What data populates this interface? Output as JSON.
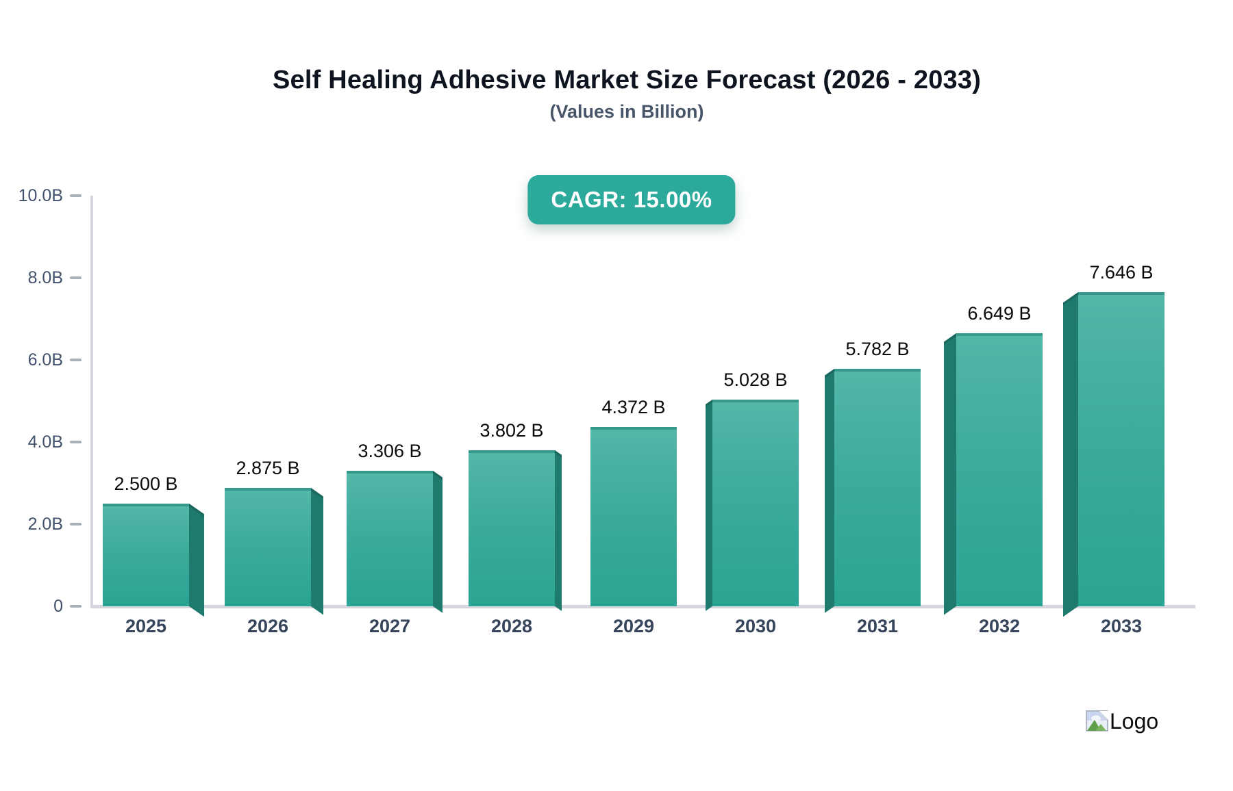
{
  "title": "Self Healing Adhesive Market Size Forecast (2026 - 2033)",
  "subtitle": "(Values in Billion)",
  "badge": {
    "text": "CAGR: 15.00%",
    "bg_color": "#2ba99b"
  },
  "logo": {
    "alt_text": "Logo"
  },
  "colors": {
    "bar_face_top": "#53b6a9",
    "bar_face_bottom": "#2aa493",
    "bar_side": "#1f7a6e",
    "axis_line": "#d3d7dd",
    "tick_dash": "#aab1b9",
    "y_label": "#42526b",
    "x_label": "#36455b",
    "value_label": "#0a0a0a",
    "badge_bg": "#2ba99b",
    "title_color": "#0d1420",
    "subtitle_color": "#475569"
  },
  "chart_data": {
    "type": "bar",
    "title": "Self Healing Adhesive Market Size Forecast (2026 - 2033)",
    "subtitle": "(Values in Billion)",
    "cagr": "15.00%",
    "unit": "Billion",
    "categories": [
      "2025",
      "2026",
      "2027",
      "2028",
      "2029",
      "2030",
      "2031",
      "2032",
      "2033"
    ],
    "values": [
      2.5,
      2.875,
      3.306,
      3.802,
      4.372,
      5.028,
      5.782,
      6.649,
      7.646
    ],
    "bar_labels": [
      "2.500 B",
      "2.875 B",
      "3.306 B",
      "3.802 B",
      "4.372 B",
      "5.028 B",
      "5.782 B",
      "6.649 B",
      "7.646 B"
    ],
    "ylim": [
      0,
      10
    ],
    "yticks": [
      {
        "value": 10,
        "label": "10.0B"
      },
      {
        "value": 8,
        "label": "8.0B"
      },
      {
        "value": 6,
        "label": "6.0B"
      },
      {
        "value": 4,
        "label": "4.0B"
      },
      {
        "value": 2,
        "label": "2.0B"
      },
      {
        "value": 0,
        "label": "0"
      }
    ],
    "grid": false,
    "legend": false,
    "style": "3d-perspective-bars"
  }
}
